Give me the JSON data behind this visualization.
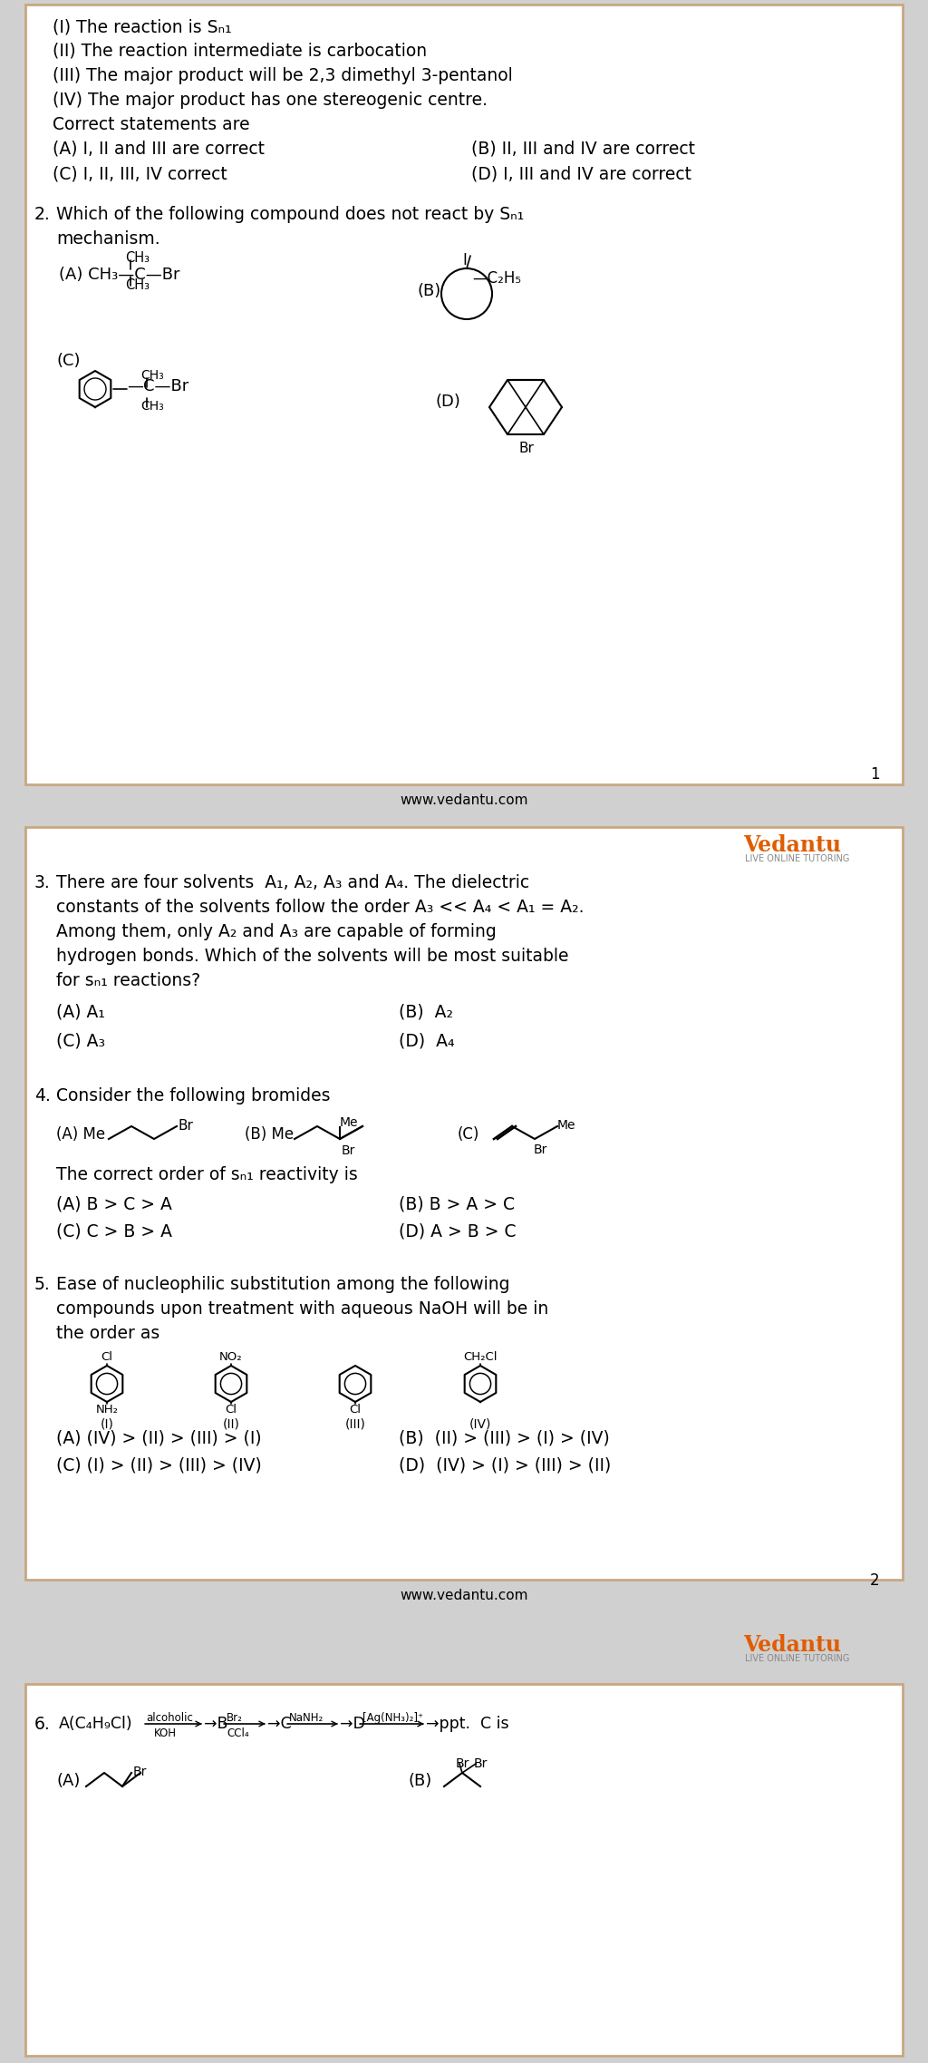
{
  "bg_color": "#d0d0d0",
  "page_bg": "#ffffff",
  "border_color": "#c8a882",
  "text_color": "#000000",
  "vedantu_orange": "#e05c00",
  "website": "www.vedantu.com",
  "q1_lines": [
    "(I) The reaction is Sₙ₁",
    "(II) The reaction intermediate is carbocation",
    "(III) The major product will be 2,3 dimethyl 3-pentanol",
    "(IV) The major product has one stereogenic centre.",
    "Correct statements are"
  ],
  "q1_optA": "(A) I, II and III are correct",
  "q1_optB": "(B) II, III and IV are correct",
  "q1_optC": "(C) I, II, III, IV correct",
  "q1_optD": "(D) I, III and IV are correct",
  "q2_line1": "Which of the following compound does not react by Sₙ₁",
  "q2_line2": "mechanism.",
  "q3_line1": "There are four solvents  A₁, A₂, A₃ and A₄. The dielectric",
  "q3_line2": "constants of the solvents follow the order A₃ << A₄ < A₁ = A₂.",
  "q3_line3": "Among them, only A₂ and A₃ are capable of forming",
  "q3_line4": "hydrogen bonds. Which of the solvents will be most suitable",
  "q3_line5": "for sₙ₁ reactions?",
  "q3_optA": "(A) A₁",
  "q3_optB": "(B)  A₂",
  "q3_optC": "(C) A₃",
  "q3_optD": "(D)  A₄",
  "q4_line1": "Consider the following bromides",
  "q4_order": "The correct order of sₙ₁ reactivity is",
  "q4_optA": "(A) B > C > A",
  "q4_optB": "(B) B > A > C",
  "q4_optC": "(C) C > B > A",
  "q4_optD": "(D) A > B > C",
  "q5_line1": "Ease of nucleophilic substitution among the following",
  "q5_line2": "compounds upon treatment with aqueous NaOH will be in",
  "q5_line3": "the order as",
  "q5_optA": "(A) (IV) > (II) > (III) > (I)",
  "q5_optB": "(B)  (II) > (III) > (I) > (IV)",
  "q5_optC": "(C) (I) > (II) > (III) > (IV)",
  "q5_optD": "(D)  (IV) > (I) > (III) > (II)",
  "q6_A_label": "A(C₄H₉Cl)",
  "q6_arrow1_top": "alcoholic",
  "q6_arrow1_bot": "KOH",
  "q6_B": "→B",
  "q6_arrow2_top": "Br₂",
  "q6_arrow2_bot": "CCl₄",
  "q6_C": "→C",
  "q6_arrow3_top": "NaNH₂",
  "q6_D": "→D",
  "q6_arrow4_top": "[Ag(NH₃)₂]⁺",
  "q6_end": "→ppt.  C is",
  "q6_optA": "(A)",
  "q6_optB": "(B)"
}
